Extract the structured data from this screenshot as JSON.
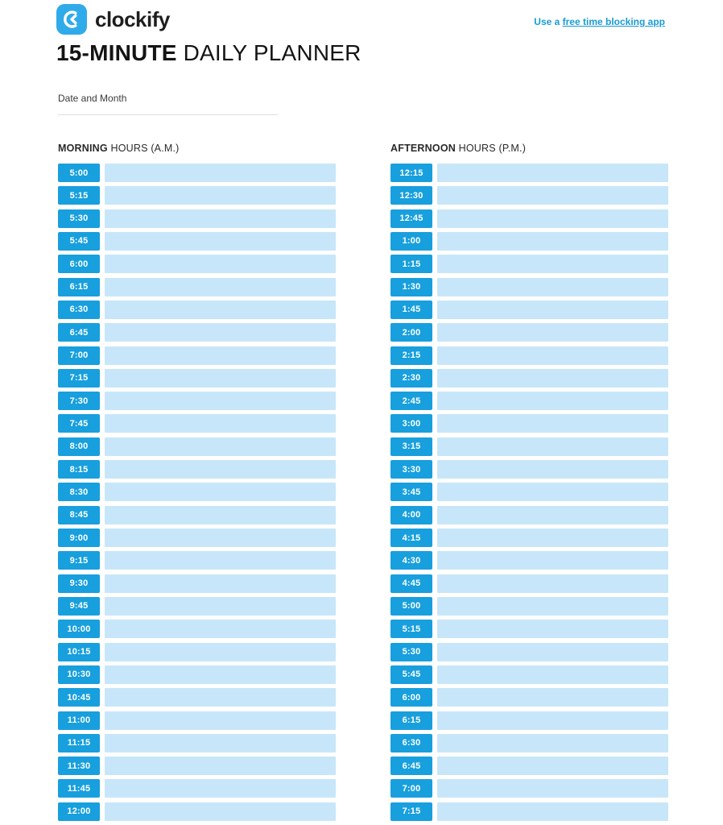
{
  "header": {
    "brand": "clockify",
    "link_prefix": "Use a ",
    "link_underlined": "free time blocking app"
  },
  "title": {
    "bold": "15-MINUTE",
    "rest": " DAILY PLANNER"
  },
  "date_field": {
    "label": "Date and Month"
  },
  "columns": [
    {
      "header_bold": "MORNING",
      "header_rest": " HOURS (A.M.)",
      "times": [
        "5:00",
        "5:15",
        "5:30",
        "5:45",
        "6:00",
        "6:15",
        "6:30",
        "6:45",
        "7:00",
        "7:15",
        "7:30",
        "7:45",
        "8:00",
        "8:15",
        "8:30",
        "8:45",
        "9:00",
        "9:15",
        "9:30",
        "9:45",
        "10:00",
        "10:15",
        "10:30",
        "10:45",
        "11:00",
        "11:15",
        "11:30",
        "11:45",
        "12:00"
      ]
    },
    {
      "header_bold": "AFTERNOON",
      "header_rest": " HOURS (P.M.)",
      "times": [
        "12:15",
        "12:30",
        "12:45",
        "1:00",
        "1:15",
        "1:30",
        "1:45",
        "2:00",
        "2:15",
        "2:30",
        "2:45",
        "3:00",
        "3:15",
        "3:30",
        "3:45",
        "4:00",
        "4:15",
        "4:30",
        "4:45",
        "5:00",
        "5:15",
        "5:30",
        "5:45",
        "6:00",
        "6:15",
        "6:30",
        "6:45",
        "7:00",
        "7:15"
      ]
    }
  ],
  "colors": {
    "accent": "#189fdd",
    "light": "#c8e6f9",
    "link": "#189bd5",
    "logo": "#2fabe9"
  }
}
